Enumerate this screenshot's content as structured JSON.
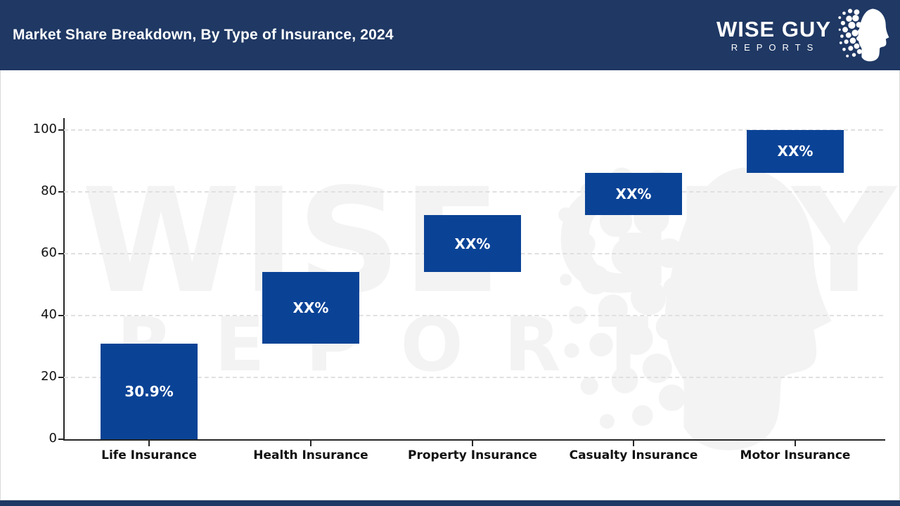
{
  "header": {
    "title": "Market Share Breakdown, By Type of Insurance, 2024",
    "logo": {
      "line1": "WISE GUY",
      "line2": "REPORTS"
    },
    "bg_color": "#1f3864"
  },
  "watermark": {
    "line1": "WISE GUY",
    "line2": "REPORTS"
  },
  "chart_data": {
    "type": "bar",
    "subtype": "floating-waterfall",
    "title": "Market Share Breakdown, By Type of Insurance, 2024",
    "categories": [
      "Life Insurance",
      "Health Insurance",
      "Property Insurance",
      "Casualty Insurance",
      "Motor Insurance"
    ],
    "segments": [
      {
        "category": "Life Insurance",
        "start": 0,
        "end": 30.9,
        "label": "30.9%"
      },
      {
        "category": "Health Insurance",
        "start": 30.9,
        "end": 54.0,
        "label": "XX%"
      },
      {
        "category": "Property Insurance",
        "start": 54.0,
        "end": 72.4,
        "label": "XX%"
      },
      {
        "category": "Casualty Insurance",
        "start": 72.5,
        "end": 86.2,
        "label": "XX%"
      },
      {
        "category": "Motor Insurance",
        "start": 86.2,
        "end": 100,
        "label": "XX%"
      }
    ],
    "xlabel": "",
    "ylabel": "",
    "ylim": [
      0,
      100
    ],
    "yticks": [
      0,
      20,
      40,
      60,
      80,
      100
    ],
    "grid": "horizontal-dashed",
    "legend": "none",
    "bar_color": "#0a4396",
    "bar_label_color": "#ffffff",
    "accent_navy": "#1f3864"
  }
}
